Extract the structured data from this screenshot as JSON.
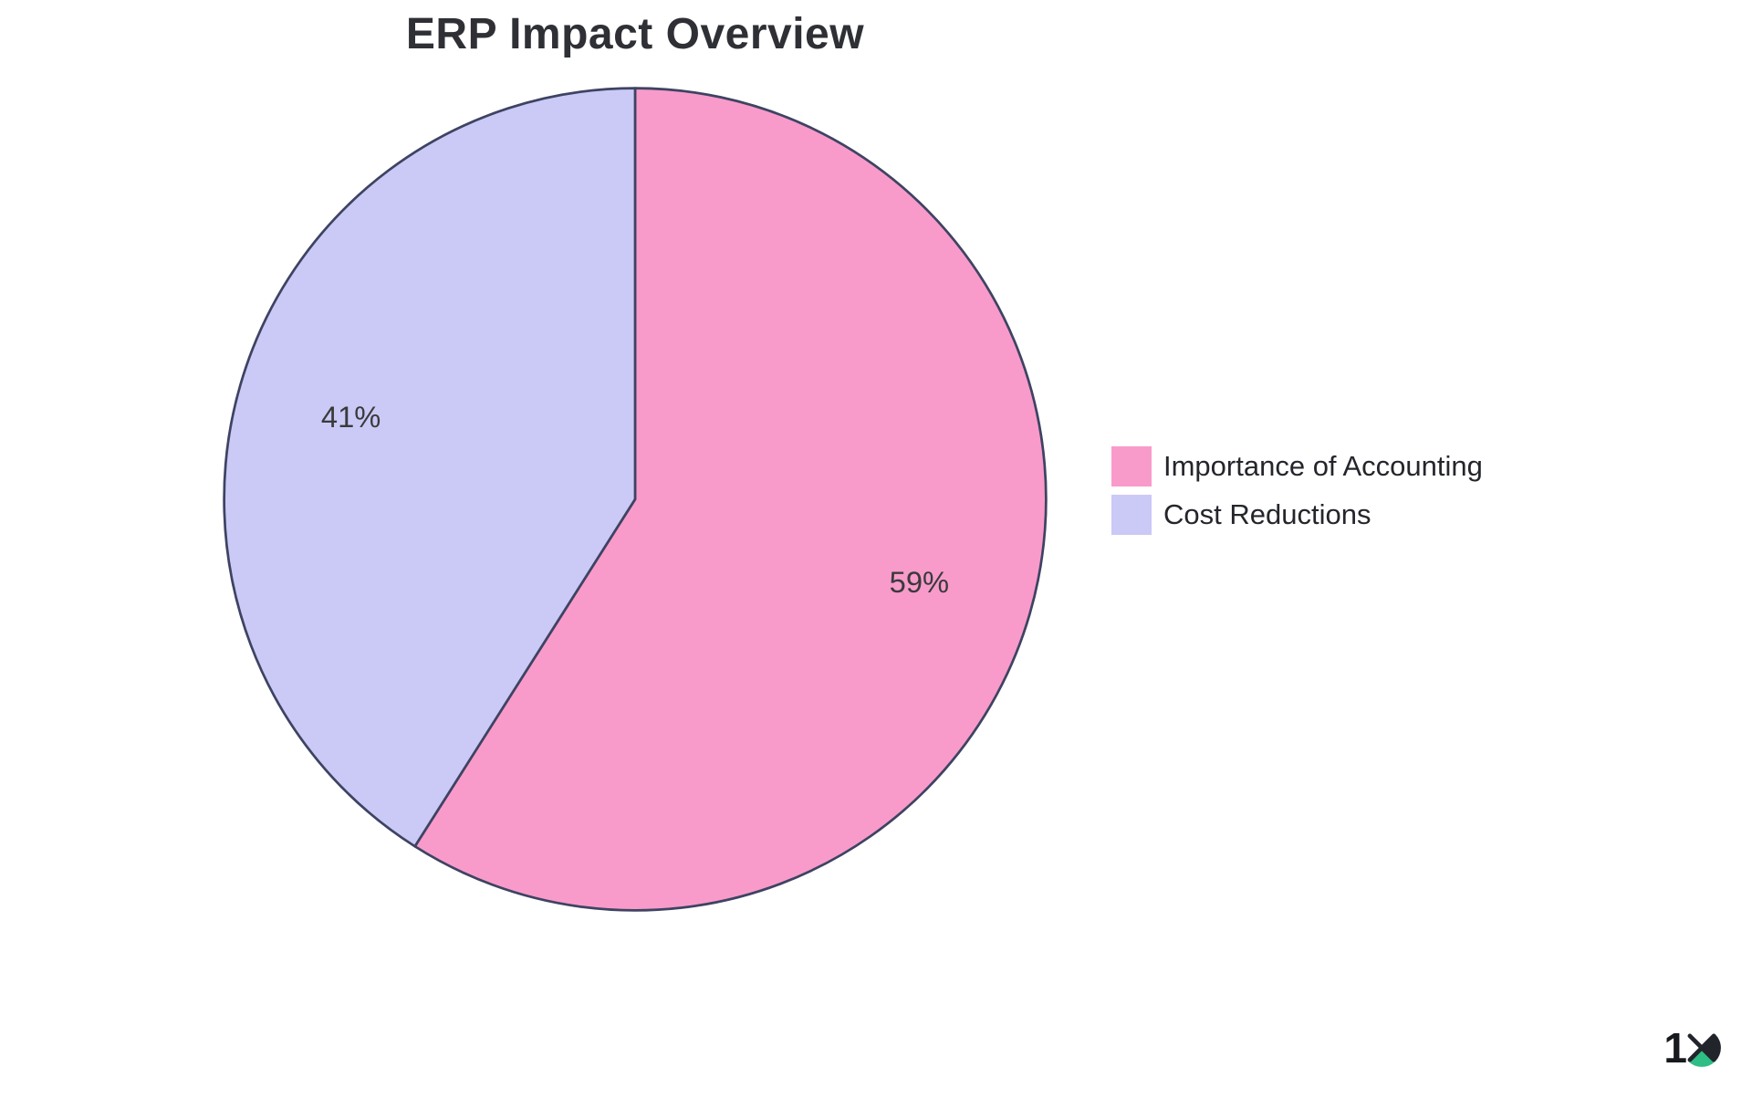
{
  "chart_data": {
    "type": "pie",
    "title": "ERP Impact Overview",
    "categories": [
      "Importance of Accounting",
      "Cost Reductions"
    ],
    "values": [
      59,
      41
    ],
    "value_labels": [
      "59%",
      "41%"
    ],
    "colors": [
      "#F89BCA",
      "#CBC9F6"
    ],
    "stroke_color": "#3E4362",
    "label_color": "#3A3A3C",
    "start_angle_deg": 0,
    "direction": "clockwise",
    "legend_position": "right",
    "background": "#FFFFFF"
  },
  "watermark": {
    "text": "1",
    "icon": "x-circle-icon",
    "colors": {
      "dark": "#22242B",
      "green": "#2EBD85",
      "white": "#FFFFFF"
    }
  }
}
